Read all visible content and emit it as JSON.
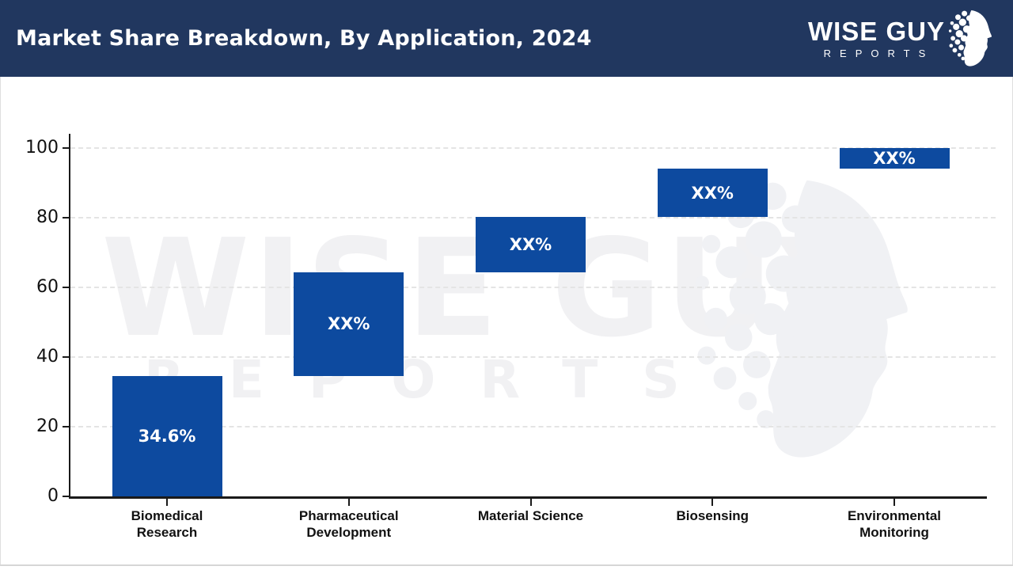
{
  "header": {
    "title": "Market Share Breakdown, By Application, 2024",
    "logo_text": "WISE GUY",
    "logo_subtext": "REPORTS"
  },
  "watermark": {
    "text": "WISE GUY",
    "subtext": "REPORTS"
  },
  "colors": {
    "header_bg": "#21375f",
    "bar": "#0d4a9f",
    "bar_label_text": "#ffffff",
    "grid": "#e4e4e4",
    "axis": "#1a1a1a",
    "watermark": "#f1f1f3"
  },
  "chart_data": {
    "type": "bar",
    "subtype": "waterfall",
    "title": "Market Share Breakdown, By Application, 2024",
    "categories": [
      "Biomedical Research",
      "Pharmaceutical Development",
      "Material Science",
      "Biosensing",
      "Environmental Monitoring"
    ],
    "category_lines": [
      [
        "Biomedical",
        "Research"
      ],
      [
        "Pharmaceutical",
        "Development"
      ],
      [
        "Material Science"
      ],
      [
        "Biosensing"
      ],
      [
        "Environmental",
        "Monitoring"
      ]
    ],
    "segments": [
      {
        "category": "Biomedical Research",
        "start": 0,
        "end": 34.6,
        "value": 34.6,
        "label": "34.6%"
      },
      {
        "category": "Pharmaceutical Development",
        "start": 34.6,
        "end": 64.3,
        "value": 29.7,
        "label": "XX%"
      },
      {
        "category": "Material Science",
        "start": 64.3,
        "end": 80.2,
        "value": 15.9,
        "label": "XX%"
      },
      {
        "category": "Biosensing",
        "start": 80.2,
        "end": 94.1,
        "value": 13.9,
        "label": "XX%"
      },
      {
        "category": "Environmental Monitoring",
        "start": 94.1,
        "end": 100,
        "value": 5.9,
        "label": "XX%"
      }
    ],
    "xlabel": "",
    "ylabel": "",
    "ylim": [
      0,
      100
    ],
    "yticks": [
      0,
      20,
      40,
      60,
      80,
      100
    ],
    "grid": "horizontal-dashed",
    "legend": "none",
    "bar_color": "#0d4a9f"
  }
}
